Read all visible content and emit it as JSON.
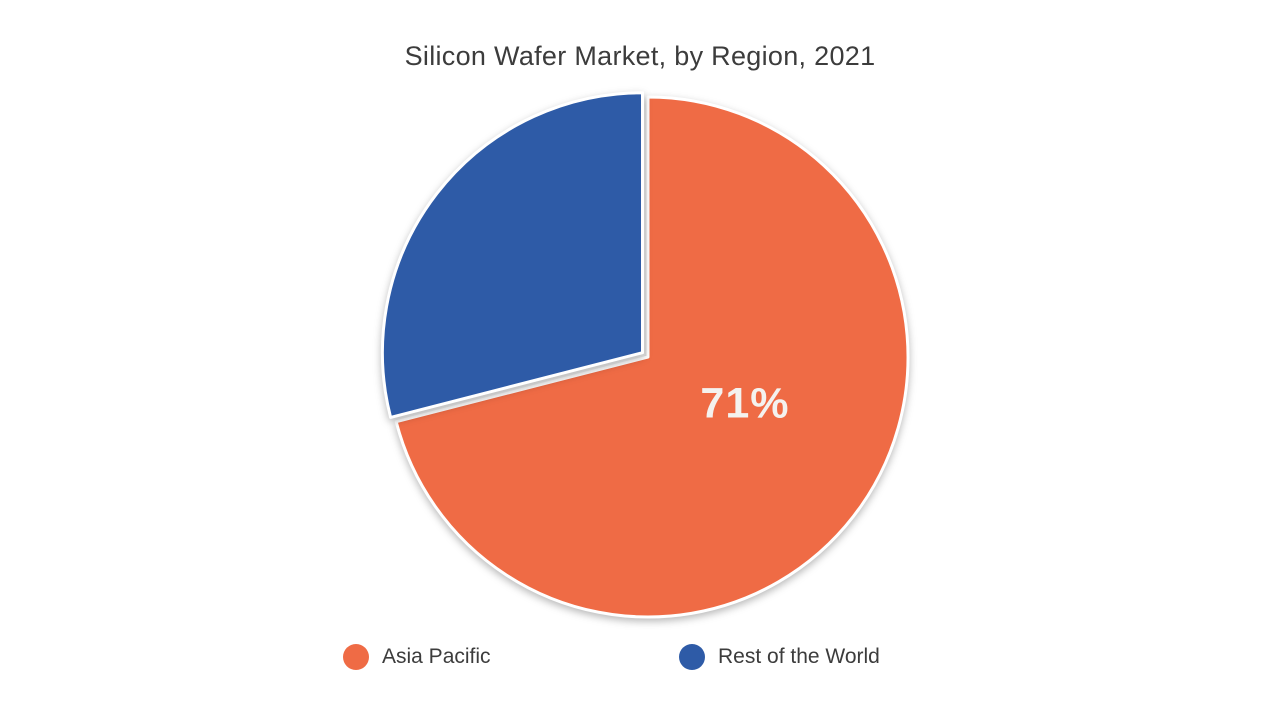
{
  "chart_data": {
    "type": "pie",
    "title": "Silicon Wafer Market, by Region, 2021",
    "total": 100,
    "start_angle_deg": 0,
    "direction": "clockwise",
    "slices": [
      {
        "label": "Asia Pacific",
        "value": 71,
        "color": "#EF6B45",
        "exploded": false
      },
      {
        "label": "Rest of the World",
        "value": 29,
        "color": "#2E5BA7",
        "exploded": true
      }
    ],
    "value_label": {
      "text": "71%",
      "slice_index": 0,
      "r_frac": 0.415,
      "angle_deg": 116,
      "color": "#F4F2EF"
    },
    "legend": {
      "position": "bottom"
    },
    "slice_border_color": "#FFFFFF",
    "background_color": "#FFFFFF",
    "text_color": "#3C3C3C"
  }
}
